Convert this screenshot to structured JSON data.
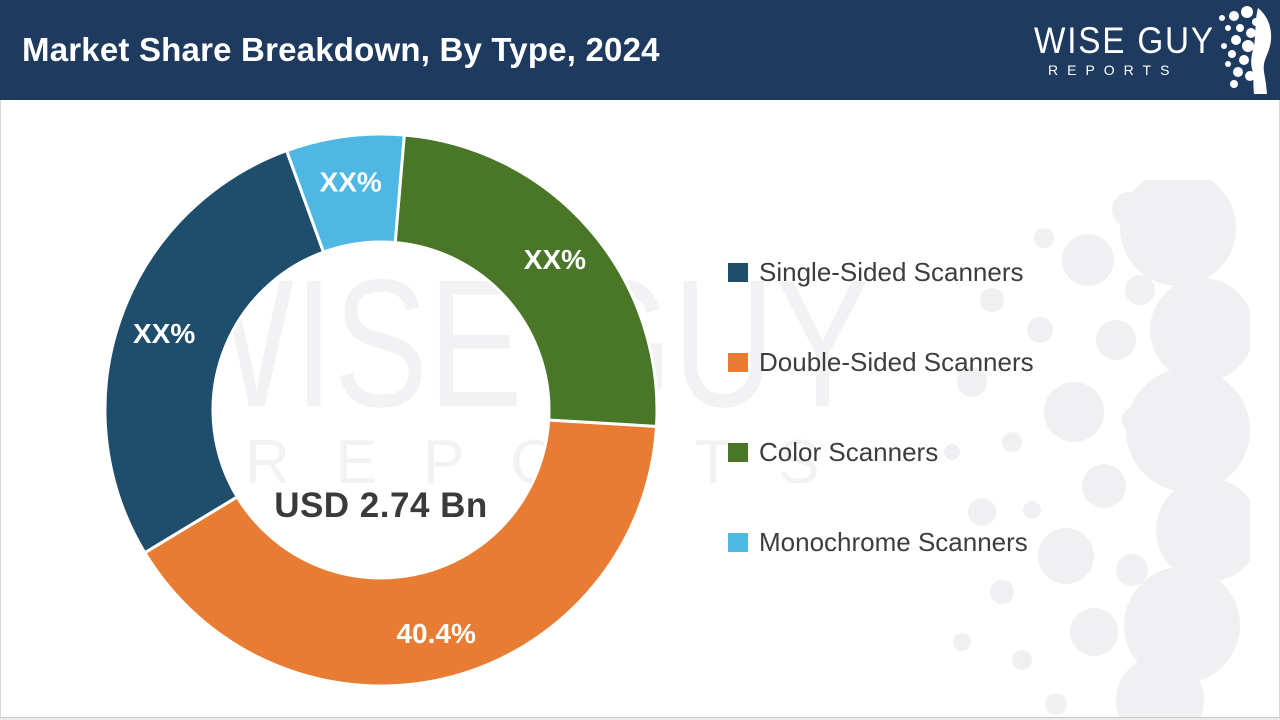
{
  "header": {
    "title": "Market Share Breakdown, By Type, 2024",
    "bg_color": "#1e3a5f",
    "logo": {
      "name": "WISE GUY",
      "sub": "REPORTS"
    }
  },
  "watermark": {
    "line1": "WISE GUY",
    "line2": "REPORTS"
  },
  "chart_data": {
    "type": "pie",
    "subtype": "donut",
    "center_label": "USD 2.74 Bn",
    "legend_position": "right",
    "inner_radius_ratio": 0.61,
    "start_angle_deg_cw_from_top": 340,
    "slices": [
      {
        "label": "Single-Sided Scanners",
        "display_pct": "XX%",
        "value_pct": 28.1,
        "color": "#1f4e6d"
      },
      {
        "label": "Double-Sided Scanners",
        "display_pct": "40.4%",
        "value_pct": 40.4,
        "color": "#e87c33"
      },
      {
        "label": "Color Scanners",
        "display_pct": "XX%",
        "value_pct": 24.6,
        "color": "#497627"
      },
      {
        "label": "Monochrome Scanners",
        "display_pct": "XX%",
        "value_pct": 6.9,
        "color": "#4fb7e3"
      }
    ]
  }
}
